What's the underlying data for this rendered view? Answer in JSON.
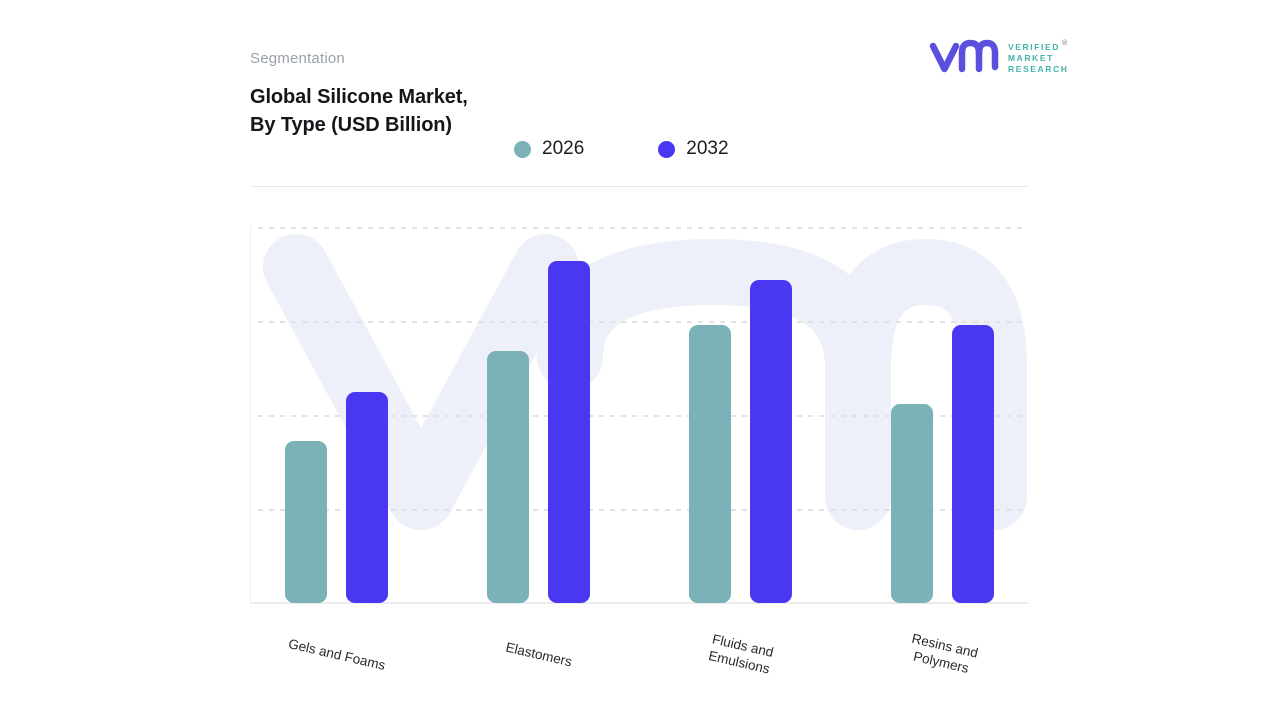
{
  "header": {
    "kicker": "Segmentation",
    "title_line1": "Global Silicone Market,",
    "title_line2": "By Type (USD Billion)"
  },
  "brand": {
    "line1": "VERIFIED",
    "line2": "MARKET",
    "line3": "RESEARCH",
    "registered": "®"
  },
  "legend": [
    {
      "label": "2026",
      "color": "#7ab2b7"
    },
    {
      "label": "2032",
      "color": "#4937f2"
    }
  ],
  "chart_data": {
    "type": "bar",
    "title": "Global Silicone Market, By Type (USD Billion)",
    "xlabel": "",
    "ylabel": "",
    "categories": [
      "Gels and Foams",
      "Elastomers",
      "Fluids and Emulsions",
      "Resins and Polymers"
    ],
    "category_label_lines": [
      [
        "Gels and Foams"
      ],
      [
        "Elastomers"
      ],
      [
        "Fluids and",
        "Emulsions"
      ],
      [
        "Resins and",
        "Polymers"
      ]
    ],
    "series": [
      {
        "name": "2026",
        "color": "#7ab2b7",
        "values": [
          43,
          67,
          74,
          53
        ]
      },
      {
        "name": "2032",
        "color": "#4937f2",
        "values": [
          56,
          91,
          86,
          74
        ]
      }
    ],
    "ylim": [
      0,
      100
    ],
    "gridline_values": [
      25,
      50,
      75,
      100
    ],
    "grid_style": "dashed",
    "legend_position": "top-center",
    "note": "y-axis has no tick labels in source; values are estimated relative heights where the top gridline = 100"
  },
  "colors": {
    "series_2026": "#7ab2b7",
    "series_2032": "#4937f2",
    "watermark": "#eef0f9",
    "logo_purple": "#5b50de",
    "logo_text_teal": "#43b3a9"
  }
}
